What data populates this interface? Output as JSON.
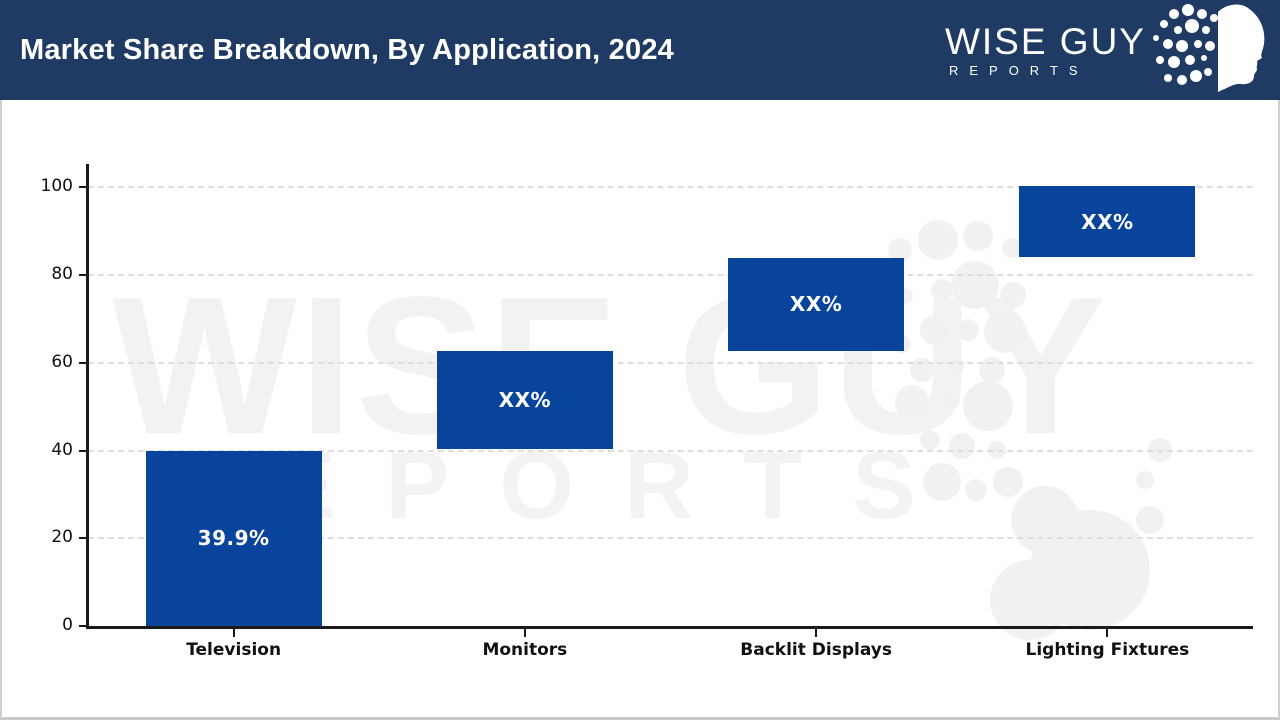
{
  "header": {
    "title": "Market Share Breakdown, By Application, 2024",
    "logo_line1": "WISE GUY",
    "logo_line2": "REPORTS"
  },
  "watermark": {
    "line1": "WISE GUY",
    "line2": "REPORTS"
  },
  "colors": {
    "header_bg": "#1f3a63",
    "bar": "#08449b",
    "grid": "#dedede",
    "axis": "#1a1a1a",
    "watermark": "#f2f2f2"
  },
  "chart_data": {
    "type": "bar",
    "subtype": "floating-waterfall",
    "title": "Market Share Breakdown, By Application, 2024",
    "xlabel": "",
    "ylabel": "",
    "categories": [
      "Television",
      "Monitors",
      "Backlit Displays",
      "Lighting Fixtures"
    ],
    "segments": [
      {
        "category": "Television",
        "start": 0,
        "end": 39.9,
        "label": "39.9%"
      },
      {
        "category": "Monitors",
        "start": 40.3,
        "end": 62.7,
        "label": "XX%"
      },
      {
        "category": "Backlit Displays",
        "start": 62.7,
        "end": 83.9,
        "label": "XX%"
      },
      {
        "category": "Lighting Fixtures",
        "start": 84.0,
        "end": 100.3,
        "label": "XX%"
      }
    ],
    "yticks": [
      0,
      20,
      40,
      60,
      80,
      100
    ],
    "ylim": [
      0,
      105.3
    ],
    "grid": "horizontal-dashed",
    "legend": "none",
    "bar_color": "#08449b",
    "bar_label_color": "#ffffff"
  }
}
